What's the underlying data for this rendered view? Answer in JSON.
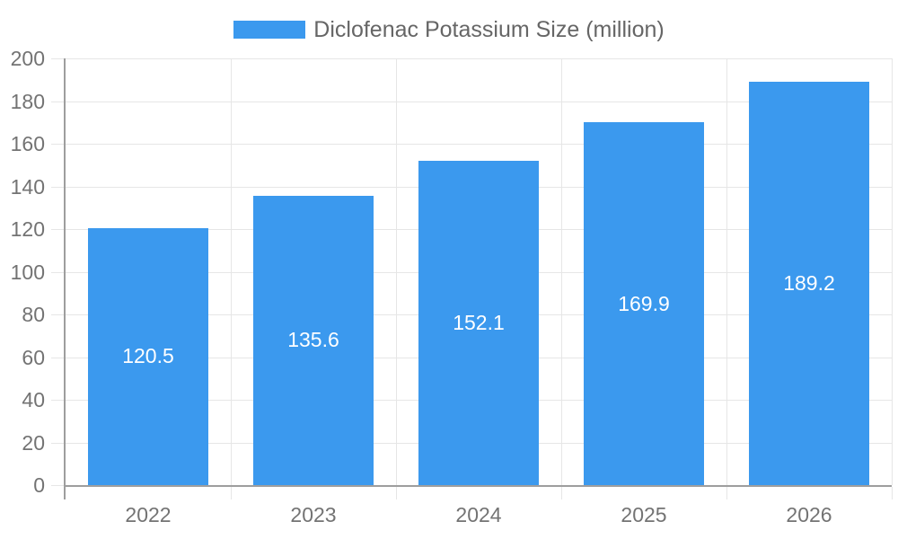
{
  "chart_data": {
    "type": "bar",
    "title": "",
    "legend": {
      "label": "Diclofenac Potassium Size (million)",
      "position": "top-center"
    },
    "categories": [
      "2022",
      "2023",
      "2024",
      "2025",
      "2026"
    ],
    "series": [
      {
        "name": "Diclofenac Potassium Size (million)",
        "values": [
          120.5,
          135.6,
          152.1,
          169.9,
          189.2
        ]
      }
    ],
    "value_labels": [
      "120.5",
      "135.6",
      "152.1",
      "169.9",
      "189.2"
    ],
    "xlabel": "",
    "ylabel": "",
    "ylim": [
      0,
      200
    ],
    "yticks": [
      0,
      20,
      40,
      60,
      80,
      100,
      120,
      140,
      160,
      180,
      200
    ],
    "grid": true,
    "colors": {
      "bar": "#3b99ee",
      "grid": "#e6e6e6",
      "axis": "#9e9e9e",
      "axis_label": "#737373",
      "legend_text": "#666666",
      "value_label": "#ffffff",
      "background": "#ffffff"
    }
  }
}
